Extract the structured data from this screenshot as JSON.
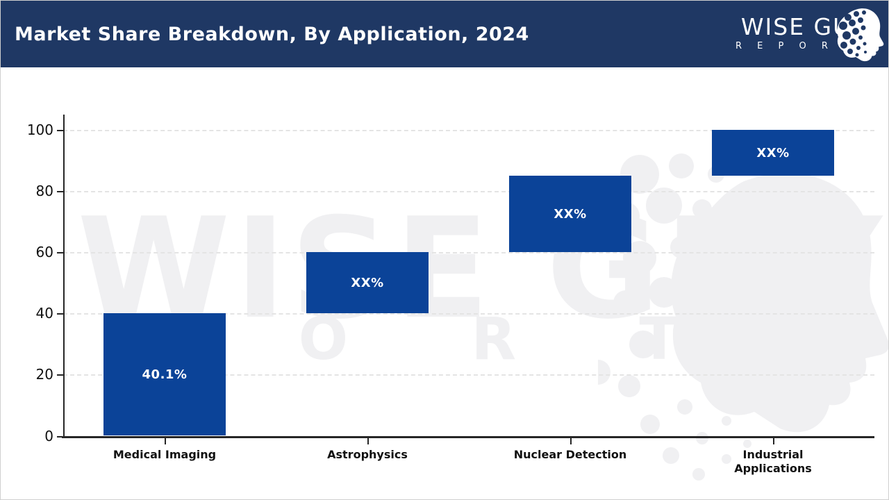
{
  "header": {
    "title": "Market Share Breakdown, By Application, 2024",
    "bg_color": "#1f3864",
    "logo": {
      "line1": "WISE GUY",
      "line2": "R E P O R T S"
    }
  },
  "watermark": {
    "line1": "WISE GUY",
    "line2": "P O R T S"
  },
  "chart_data": {
    "type": "bar",
    "subtype": "waterfall",
    "title": "Market Share Breakdown, By Application, 2024",
    "categories": [
      "Medical Imaging",
      "Astrophysics",
      "Nuclear Detection",
      "Industrial Applications"
    ],
    "segments": [
      {
        "start": 0,
        "end": 40.1,
        "label": "40.1%"
      },
      {
        "start": 40.1,
        "end": 60,
        "label": "XX%"
      },
      {
        "start": 60,
        "end": 85,
        "label": "XX%"
      },
      {
        "start": 85,
        "end": 100,
        "label": "XX%"
      }
    ],
    "xlabel": "",
    "ylabel": "",
    "ylim": [
      0,
      100
    ],
    "yticks": [
      0,
      20,
      40,
      60,
      80,
      100
    ],
    "grid": "horizontal-dashed",
    "legend": "none",
    "bar_color": "#0b4398",
    "bar_label_color": "#ffffff",
    "axis_color": "#262626",
    "tick_label_color": "#111111",
    "gridline_color": "#e4e4e4"
  }
}
